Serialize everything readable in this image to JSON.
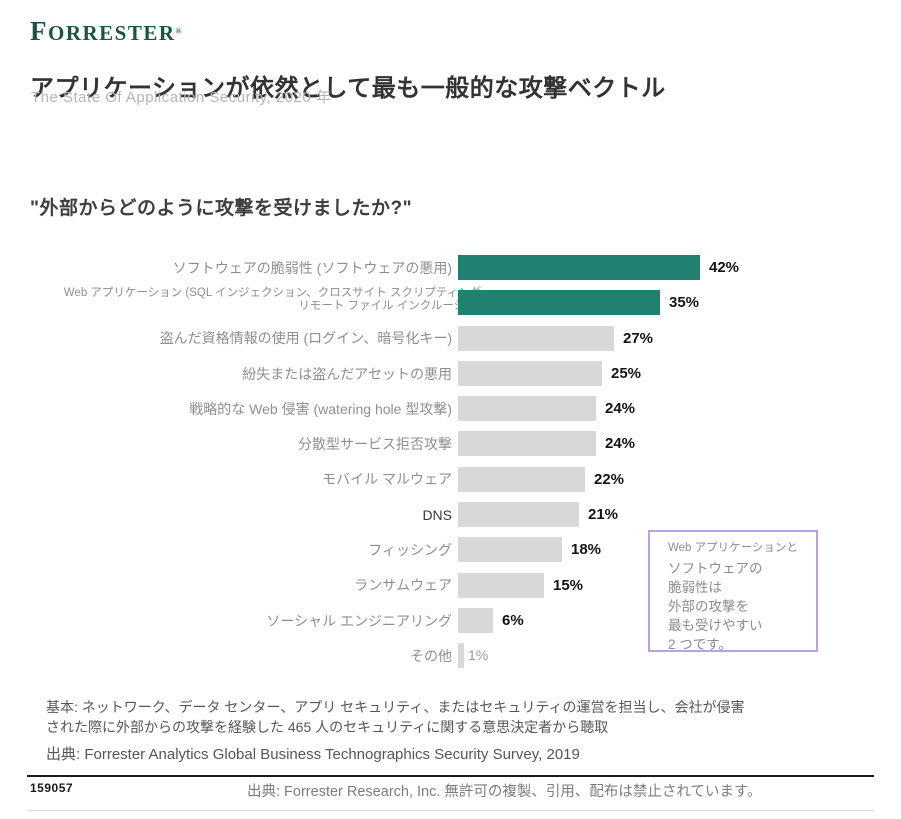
{
  "brand": {
    "logo_text": "FORRESTER",
    "registered_mark": "®"
  },
  "header": {
    "title": "アプリケーションが依然として最も一般的な攻撃ベクトル",
    "subtitle": "The State Of Application Security, 2020 年"
  },
  "question": "\"外部からどのように攻撃を受けましたか?\"",
  "chart_data": {
    "type": "bar",
    "orientation": "horizontal",
    "title": "\"外部からどのように攻撃を受けましたか?\"",
    "unit": "%",
    "xlim": [
      0,
      45
    ],
    "grid": false,
    "legend": "none",
    "colors": {
      "highlight": "#208170",
      "default": "#d8d8d8"
    },
    "categories": [
      "ソフトウェアの脆弱性 (ソフトウェアの悪用)",
      "Web アプリケーション (SQL インジェクション、クロスサイト スクリプティング、リモート ファイル インクルージョン)",
      "盗んだ資格情報の使用 (ログイン、暗号化キー)",
      "紛失または盗んだアセットの悪用",
      "戦略的な Web 侵害 (watering hole 型攻撃)",
      "分散型サービス拒否攻撃",
      "モバイル マルウェア",
      "DNS",
      "フィッシング",
      "ランサムウェア",
      "ソーシャル エンジニアリング",
      "その他"
    ],
    "values": [
      42,
      35,
      27,
      25,
      24,
      24,
      22,
      21,
      18,
      15,
      6,
      1
    ],
    "rows": [
      {
        "label": "ソフトウェアの脆弱性 (ソフトウェアの悪用)",
        "value": 42,
        "value_label": "42%",
        "highlight": true
      },
      {
        "label": "Web アプリケーション (SQL インジェクション、クロスサイト スクリプティング、リモート ファイル インクルージョン)",
        "label_lines": [
          "Web アプリケーション (SQL インジェクション、クロスサイト スクリプティング、",
          "リモート ファイル インクルージョン)"
        ],
        "value": 35,
        "value_label": "35%",
        "highlight": true
      },
      {
        "label": "盗んだ資格情報の使用 (ログイン、暗号化キー)",
        "value": 27,
        "value_label": "27%",
        "highlight": false
      },
      {
        "label": "紛失または盗んだアセットの悪用",
        "value": 25,
        "value_label": "25%",
        "highlight": false
      },
      {
        "label": "戦略的な Web 侵害 (watering hole 型攻撃)",
        "value": 24,
        "value_label": "24%",
        "highlight": false
      },
      {
        "label": "分散型サービス拒否攻撃",
        "value": 24,
        "value_label": "24%",
        "highlight": false
      },
      {
        "label": "モバイル マルウェア",
        "value": 22,
        "value_label": "22%",
        "highlight": false
      },
      {
        "label": "DNS",
        "value": 21,
        "value_label": "21%",
        "highlight": false,
        "dark_label": true
      },
      {
        "label": "フィッシング",
        "value": 18,
        "value_label": "18%",
        "highlight": false
      },
      {
        "label": "ランサムウェア",
        "value": 15,
        "value_label": "15%",
        "highlight": false
      },
      {
        "label": "ソーシャル エンジニアリング",
        "value": 6,
        "value_label": "6%",
        "highlight": false
      },
      {
        "label": "その他",
        "value": 1,
        "value_label": "1%",
        "highlight": false,
        "muted_value": true
      }
    ]
  },
  "callout": {
    "intro": "Web アプリケーションと",
    "body": "ソフトウェアの\n脆弱性は\n外部の攻撃を\n最も受けやすい\n2 つです。"
  },
  "footnotes": {
    "base": "基本: ネットワーク、データ センター、アプリ セキュリティ、またはセキュリティの運営を担当し、会社が侵害された際に外部からの攻撃を経験した 465 人のセキュリティに関する意思決定者から聴取",
    "source": "出典: Forrester Analytics Global Business Technographics Security Survey, 2019"
  },
  "footer": {
    "doc_number": "159057",
    "copyright": "出典: Forrester Research, Inc. 無許可の複製、引用、配布は禁止されています。"
  }
}
